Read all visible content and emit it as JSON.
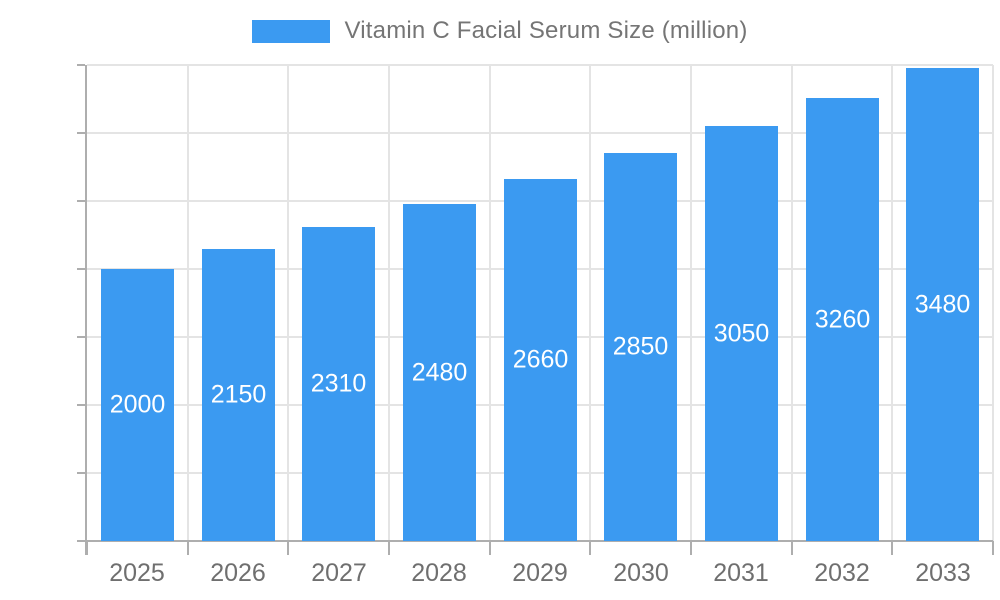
{
  "page": {
    "background": "#ffffff"
  },
  "legend": {
    "label": "Vitamin C Facial Serum Size (million)",
    "swatch_color": "#3b9af1",
    "text_color": "#757575",
    "position": "top-center"
  },
  "chart_data": {
    "type": "bar",
    "title": "Vitamin C Facial Serum Size (million)",
    "categories": [
      "2025",
      "2026",
      "2027",
      "2028",
      "2029",
      "2030",
      "2031",
      "2032",
      "2033"
    ],
    "series": [
      {
        "name": "Vitamin C Facial Serum Size (million)",
        "values": [
          2000,
          2150,
          2310,
          2480,
          2660,
          2850,
          3050,
          3260,
          3480
        ],
        "color": "#3b9af1"
      }
    ],
    "value_labels": {
      "show": true,
      "position": "center-of-bar",
      "color": "#ffffff"
    },
    "xlabel": "",
    "ylabel": "",
    "ylim": [
      0,
      3500
    ],
    "yticks": [
      0,
      500,
      1000,
      1500,
      2000,
      2500,
      3000,
      3500
    ],
    "grid": true,
    "legend_position": "top",
    "colors": {
      "grid": "#e4e4e4",
      "axis": "#aeaeae",
      "tick_label": "#6f6f6f"
    }
  }
}
